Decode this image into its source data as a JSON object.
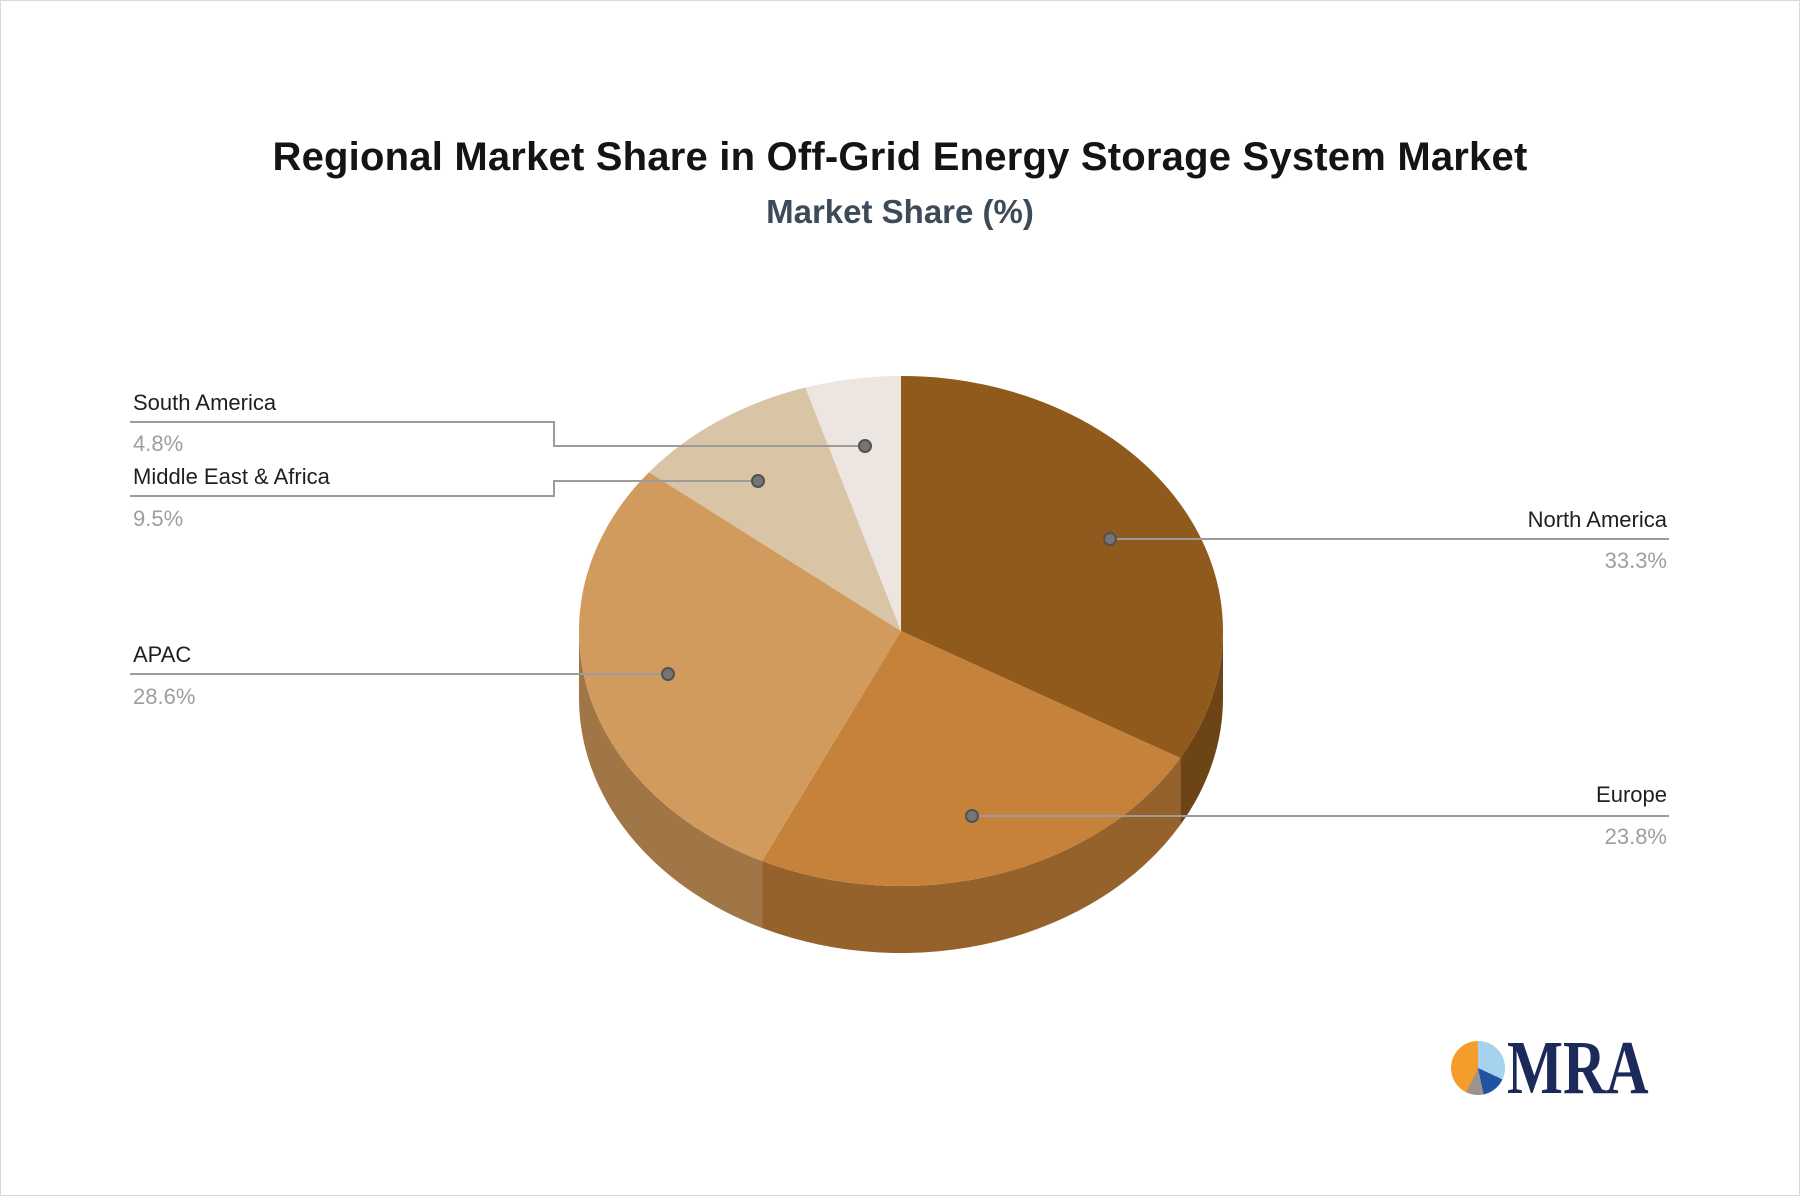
{
  "header": {
    "title": "Regional Market Share in Off-Grid Energy Storage System Market",
    "subtitle": "Market Share (%)"
  },
  "chart_data": {
    "type": "pie",
    "title": "Regional Market Share in Off-Grid Energy Storage System Market",
    "subtitle": "Market Share (%)",
    "unit": "%",
    "start_angle_deg": 0,
    "direction": "clockwise",
    "style_3d": true,
    "legend": "none",
    "labels": "callouts-with-percent",
    "slices": [
      {
        "label": "North America",
        "value": 33.3,
        "display": "33.3%",
        "color": "#8F5A1C",
        "callout_side": "right"
      },
      {
        "label": "Europe",
        "value": 23.8,
        "display": "23.8%",
        "color": "#C6813A",
        "callout_side": "right"
      },
      {
        "label": "APAC",
        "value": 28.6,
        "display": "28.6%",
        "color": "#D29B5E",
        "callout_side": "left"
      },
      {
        "label": "Middle East & Africa",
        "value": 9.5,
        "display": "9.5%",
        "color": "#D9C4A6",
        "callout_side": "left"
      },
      {
        "label": "South America",
        "value": 4.8,
        "display": "4.8%",
        "color": "#EDE5DF",
        "callout_side": "left"
      }
    ]
  },
  "style": {
    "background": "#FFFFFF",
    "border": "#D9D9D9",
    "title_color": "#141414",
    "subtitle_color": "#3D4A57",
    "label_color": "#1F1F1F",
    "value_color": "#9E9E9E",
    "line_color": "#9B9B9B",
    "dot_fill": "#757575",
    "dot_stroke": "#525252",
    "rim_shade": 0.76
  },
  "logo": {
    "text": "MRA",
    "text_color": "#1B2A5B",
    "icon": "pie-chart-icon",
    "icon_colors": {
      "orange": "#F59D2A",
      "light_blue": "#A5D2ED",
      "dark_blue": "#2152A3",
      "gray": "#9C948A"
    }
  }
}
